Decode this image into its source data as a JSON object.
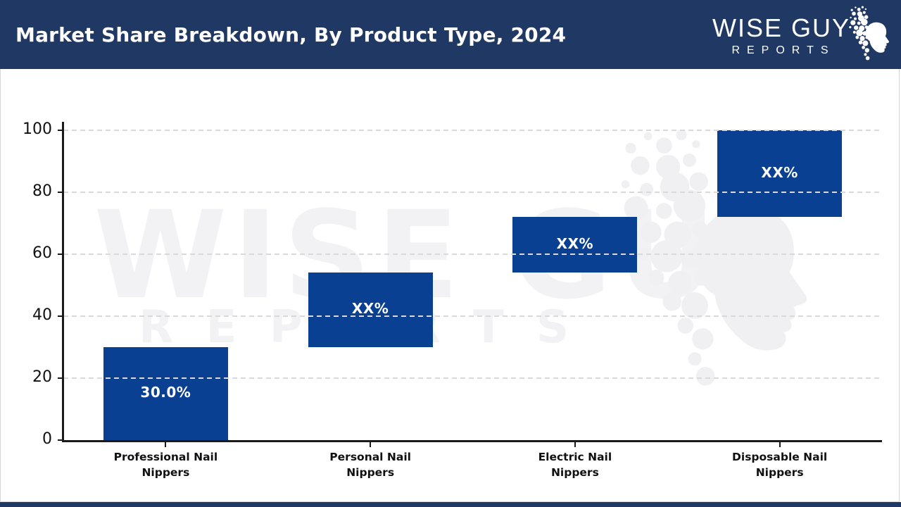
{
  "header": {
    "title": "Market Share Breakdown, By Product Type, 2024",
    "brand_line1": "WISE GUY",
    "brand_line2": "REPORTS"
  },
  "watermark": {
    "line1": "WISE GU",
    "line2": "R E P O R T S"
  },
  "chart_data": {
    "type": "bar",
    "variant": "floating-waterfall",
    "title": "Market Share Breakdown, By Product Type, 2024",
    "categories": [
      "Professional Nail Nippers",
      "Personal Nail Nippers",
      "Electric Nail Nippers",
      "Disposable Nail Nippers"
    ],
    "bars": [
      {
        "category": "Professional Nail Nippers",
        "start": 0,
        "end": 30,
        "label": "30.0%"
      },
      {
        "category": "Personal Nail Nippers",
        "start": 30,
        "end": 54,
        "label": "XX%"
      },
      {
        "category": "Electric Nail Nippers",
        "start": 54,
        "end": 72,
        "label": "XX%"
      },
      {
        "category": "Disposable Nail Nippers",
        "start": 72,
        "end": 100,
        "label": "XX%"
      }
    ],
    "yticks": [
      0,
      20,
      40,
      60,
      80,
      100
    ],
    "ylim": [
      0,
      103
    ],
    "xlabel": "",
    "ylabel": "",
    "grid": "horizontal-dashed",
    "legend": false,
    "bar_color": "#0a4092",
    "bar_label_color": "#ffffff"
  },
  "colors": {
    "header_bg": "#203864",
    "footer_bg": "#203864",
    "bar": "#0a4092",
    "gridline": "#d9d9d9",
    "axis": "#1a1a1a",
    "watermark": "#f2f2f4"
  }
}
